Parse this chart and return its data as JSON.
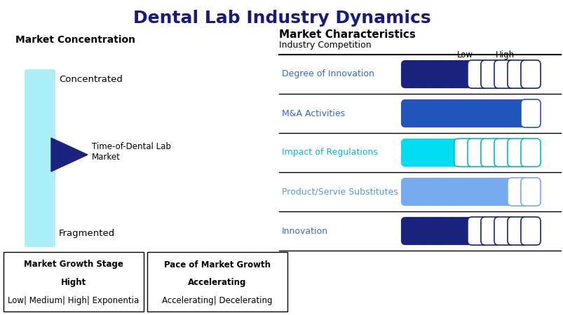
{
  "title": "Dental Lab Industry Dynamics",
  "title_color": "#1a1a7a",
  "title_fontsize": 18,
  "left_section_title": "Market Concentration",
  "bar_color": "#aaeef8",
  "arrow_color": "#1a237e",
  "concentrated_label": "Concentrated",
  "fragmented_label": "Fragmented",
  "time_label": "Time-of-Dental Lab\nMarket",
  "right_section_title": "Market Characteristics",
  "right_subtitle": "Industry Competition",
  "low_label": "Low",
  "high_label": "High",
  "characteristics": [
    {
      "label": "Degree of Innovation",
      "label_color": "#3366cc",
      "filled": 5,
      "total": 10,
      "filled_color": "#1a237e",
      "border_color": "#1a237e"
    },
    {
      "label": "M&A Activities",
      "label_color": "#3366cc",
      "filled": 9,
      "total": 10,
      "filled_color": "#2255bb",
      "border_color": "#2255bb"
    },
    {
      "label": "Impact of Regulations",
      "label_color": "#00bbcc",
      "filled": 4,
      "total": 10,
      "filled_color": "#00ddee",
      "border_color": "#00bbcc"
    },
    {
      "label": "Product/Servie Substitutes",
      "label_color": "#5599dd",
      "filled": 8,
      "total": 10,
      "filled_color": "#77aaee",
      "border_color": "#77aaee"
    },
    {
      "label": "Innovation",
      "label_color": "#4466bb",
      "filled": 5,
      "total": 10,
      "filled_color": "#1a237e",
      "border_color": "#1a237e"
    }
  ],
  "box1_lines": [
    "Market Growth Stage",
    "Hight",
    "Low| Medium| High| Exponentia"
  ],
  "box1_bold": [
    true,
    true,
    false
  ],
  "box2_lines": [
    "Pace of Market Growth",
    "Accelerating",
    "Accelerating| Decelerating"
  ],
  "box2_bold": [
    true,
    true,
    false
  ]
}
